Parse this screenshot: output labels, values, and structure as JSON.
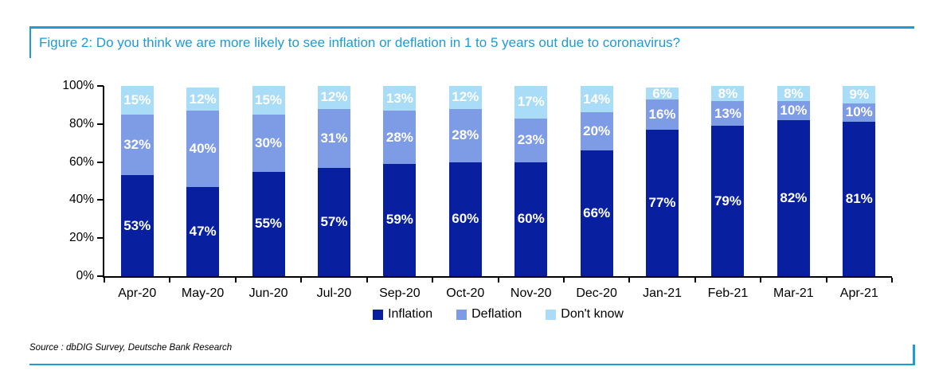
{
  "figure": {
    "title": "Figure 2: Do you think we are more likely to see inflation or deflation in 1 to 5 years out due to coronavirus?",
    "source": "Source : dbDIG Survey, Deutsche Bank Research"
  },
  "colors": {
    "accent": "#1E9AD6",
    "inflation": "#0820A0",
    "deflation": "#7E9CE5",
    "dont_know": "#A9DCF7",
    "axis": "#000000",
    "bar_label": "#FFFFFF"
  },
  "chart_data": {
    "type": "bar",
    "stacked": true,
    "title": "Figure 2: Do you think we are more likely to see inflation or deflation in 1 to 5 years out due to coronavirus?",
    "categories": [
      "Apr-20",
      "May-20",
      "Jun-20",
      "Jul-20",
      "Sep-20",
      "Oct-20",
      "Nov-20",
      "Dec-20",
      "Jan-21",
      "Feb-21",
      "Mar-21",
      "Apr-21"
    ],
    "series": [
      {
        "name": "Inflation",
        "color_key": "inflation",
        "values": [
          53,
          47,
          55,
          57,
          59,
          60,
          60,
          66,
          77,
          79,
          82,
          81
        ]
      },
      {
        "name": "Deflation",
        "color_key": "deflation",
        "values": [
          32,
          40,
          30,
          31,
          28,
          28,
          23,
          20,
          16,
          13,
          10,
          10
        ]
      },
      {
        "name": "Don't know",
        "color_key": "dont_know",
        "values": [
          15,
          12,
          15,
          12,
          13,
          12,
          17,
          14,
          6,
          8,
          8,
          9
        ]
      }
    ],
    "value_label_format": "{v}%",
    "xlabel": "",
    "ylabel": "",
    "ylim": [
      0,
      100
    ],
    "y_ticks": [
      "0%",
      "20%",
      "40%",
      "60%",
      "80%",
      "100%"
    ],
    "grid": false,
    "legend_position": "bottom"
  }
}
